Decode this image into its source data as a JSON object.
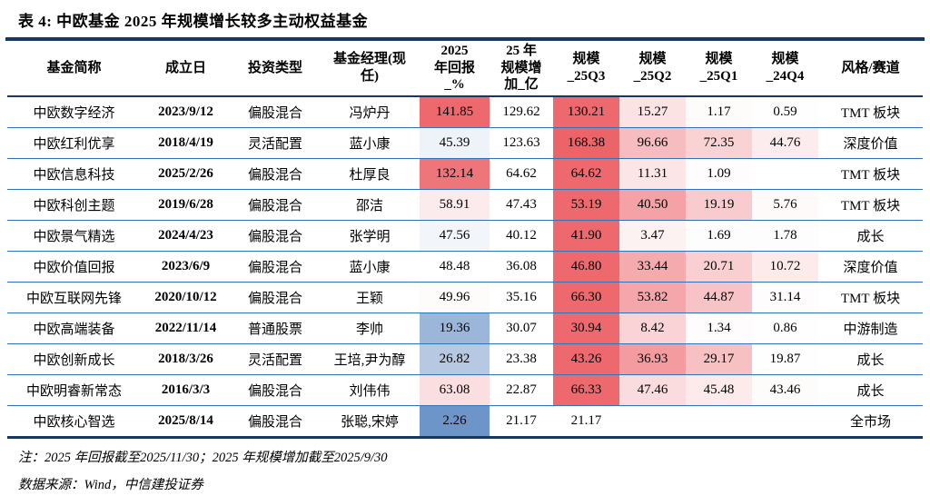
{
  "title": "表 4: 中欧基金 2025 年规模增长较多主动权益基金",
  "colors": {
    "heat_red_max": "#ed696e",
    "heat_blue_max": "#6e95c9",
    "rule_dark": "#17375d",
    "rule_light": "#2e74b5"
  },
  "notes": [
    "注：2025 年回报截至2025/11/30；2025 年规模增加截至2025/9/30",
    "数据来源：Wind，中信建投证券"
  ],
  "chart_data": {
    "type": "table",
    "title": "表 4: 中欧基金 2025 年规模增长较多主动权益基金",
    "columns": [
      "基金简称",
      "成立日",
      "投资类型",
      "基金经理(现\n任)",
      "2025\n年回报\n_%",
      "25 年\n规模增\n加_亿",
      "规模\n_25Q3",
      "规模\n_25Q2",
      "规模\n_25Q1",
      "规模\n_24Q4",
      "风格/赛道"
    ],
    "rows": [
      [
        {
          "t": "中欧数字经济"
        },
        {
          "t": "2023/9/12",
          "b": true
        },
        {
          "t": "偏股混合"
        },
        {
          "t": "冯炉丹"
        },
        {
          "t": "141.85",
          "bg": "#ed696e"
        },
        {
          "t": "129.62"
        },
        {
          "t": "130.21",
          "bg": "#ed696e"
        },
        {
          "t": "15.27",
          "bg": "#fbe3e4"
        },
        {
          "t": "1.17",
          "bg": "#fefbfb"
        },
        {
          "t": "0.59",
          "bg": "#fffefe"
        },
        {
          "t": "TMT 板块"
        }
      ],
      [
        {
          "t": "中欧红利优享"
        },
        {
          "t": "2018/4/19",
          "b": true
        },
        {
          "t": "灵活配置"
        },
        {
          "t": "蓝小康"
        },
        {
          "t": "45.39",
          "bg": "#eef2f9"
        },
        {
          "t": "123.63"
        },
        {
          "t": "168.38",
          "bg": "#ec6368"
        },
        {
          "t": "96.66",
          "bg": "#f6bcbf"
        },
        {
          "t": "72.35",
          "bg": "#f9d2d4"
        },
        {
          "t": "44.76",
          "bg": "#fdeced"
        },
        {
          "t": "深度价值"
        }
      ],
      [
        {
          "t": "中欧信息科技"
        },
        {
          "t": "2025/2/26",
          "b": true
        },
        {
          "t": "偏股混合"
        },
        {
          "t": "杜厚良"
        },
        {
          "t": "132.14",
          "bg": "#ee757a"
        },
        {
          "t": "64.62"
        },
        {
          "t": "64.62",
          "bg": "#ed696e"
        },
        {
          "t": "11.31",
          "bg": "#fbe5e6"
        },
        {
          "t": "1.09",
          "bg": "#fefcfc"
        },
        {
          "t": ""
        },
        {
          "t": "TMT 板块"
        }
      ],
      [
        {
          "t": "中欧科创主题"
        },
        {
          "t": "2019/6/28",
          "b": true
        },
        {
          "t": "偏股混合"
        },
        {
          "t": "邵洁"
        },
        {
          "t": "58.91",
          "bg": "#fcebec"
        },
        {
          "t": "47.43"
        },
        {
          "t": "53.19",
          "bg": "#ed696e"
        },
        {
          "t": "40.50",
          "bg": "#f4a2a6"
        },
        {
          "t": "19.19",
          "bg": "#f8cccf"
        },
        {
          "t": "5.76",
          "bg": "#fefafa"
        },
        {
          "t": "TMT 板块"
        }
      ],
      [
        {
          "t": "中欧景气精选"
        },
        {
          "t": "2024/4/23",
          "b": true
        },
        {
          "t": "偏股混合"
        },
        {
          "t": "张学明"
        },
        {
          "t": "47.56",
          "bg": "#f2f5fa"
        },
        {
          "t": "40.12"
        },
        {
          "t": "41.90",
          "bg": "#ed696e"
        },
        {
          "t": "3.47",
          "bg": "#fdf2f2"
        },
        {
          "t": "1.69",
          "bg": "#fefdfd"
        },
        {
          "t": "1.78",
          "bg": "#fefdfd"
        },
        {
          "t": "成长"
        }
      ],
      [
        {
          "t": "中欧价值回报"
        },
        {
          "t": "2023/6/9",
          "b": true
        },
        {
          "t": "偏股混合"
        },
        {
          "t": "蓝小康"
        },
        {
          "t": "48.48"
        },
        {
          "t": "36.08"
        },
        {
          "t": "46.80",
          "bg": "#ed696e"
        },
        {
          "t": "33.44",
          "bg": "#f5aaae"
        },
        {
          "t": "20.71",
          "bg": "#f9cfd1"
        },
        {
          "t": "10.72",
          "bg": "#fdebeb"
        },
        {
          "t": "深度价值"
        }
      ],
      [
        {
          "t": "中欧互联网先锋"
        },
        {
          "t": "2020/10/12",
          "b": true
        },
        {
          "t": "偏股混合"
        },
        {
          "t": "王颖"
        },
        {
          "t": "49.96",
          "bg": "#fefbfb"
        },
        {
          "t": "35.16"
        },
        {
          "t": "66.30",
          "bg": "#ed696e"
        },
        {
          "t": "53.82",
          "bg": "#f5a6aa"
        },
        {
          "t": "44.87",
          "bg": "#f7c3c6"
        },
        {
          "t": "31.14",
          "bg": "#fefcfc"
        },
        {
          "t": "TMT 板块"
        }
      ],
      [
        {
          "t": "中欧高端装备"
        },
        {
          "t": "2022/11/14",
          "b": true
        },
        {
          "t": "普通股票"
        },
        {
          "t": "李帅"
        },
        {
          "t": "19.36",
          "bg": "#9cb6d9"
        },
        {
          "t": "30.07"
        },
        {
          "t": "30.94",
          "bg": "#ed696e"
        },
        {
          "t": "8.42",
          "bg": "#f9d3d5"
        },
        {
          "t": "1.34",
          "bg": "#fefcfc"
        },
        {
          "t": "0.86",
          "bg": "#fffefe"
        },
        {
          "t": "中游制造"
        }
      ],
      [
        {
          "t": "中欧创新成长"
        },
        {
          "t": "2018/3/26",
          "b": true
        },
        {
          "t": "灵活配置"
        },
        {
          "t": "王培,尹为醇"
        },
        {
          "t": "26.82",
          "bg": "#b7c8e2"
        },
        {
          "t": "23.38"
        },
        {
          "t": "43.26",
          "bg": "#ed696e"
        },
        {
          "t": "36.93",
          "bg": "#f49ba0"
        },
        {
          "t": "29.17",
          "bg": "#f7c0c3"
        },
        {
          "t": "19.87",
          "bg": "#fffefe"
        },
        {
          "t": "成长"
        }
      ],
      [
        {
          "t": "中欧明睿新常态"
        },
        {
          "t": "2016/3/3",
          "b": true
        },
        {
          "t": "偏股混合"
        },
        {
          "t": "刘伟伟"
        },
        {
          "t": "63.08",
          "bg": "#fbdee0"
        },
        {
          "t": "22.87"
        },
        {
          "t": "66.33",
          "bg": "#ed696e"
        },
        {
          "t": "47.46",
          "bg": "#fbdcde"
        },
        {
          "t": "45.48",
          "bg": "#fdeaeb"
        },
        {
          "t": "43.46",
          "bg": "#fefbfb"
        },
        {
          "t": "成长"
        }
      ],
      [
        {
          "t": "中欧核心智选"
        },
        {
          "t": "2025/8/14",
          "b": true
        },
        {
          "t": "偏股混合"
        },
        {
          "t": "张聪,宋婷"
        },
        {
          "t": "2.26",
          "bg": "#6e95c9"
        },
        {
          "t": "21.17"
        },
        {
          "t": "21.17"
        },
        {
          "t": ""
        },
        {
          "t": ""
        },
        {
          "t": ""
        },
        {
          "t": "全市场"
        }
      ]
    ]
  }
}
